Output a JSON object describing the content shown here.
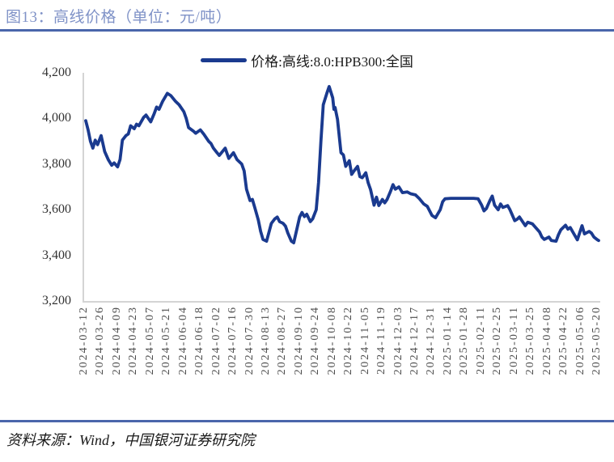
{
  "title": "图13：高线价格（单位：元/吨）",
  "legend": {
    "label": "价格:高线:8.0:HPB300:全国"
  },
  "source": "资料来源：Wind，中国银河证券研究院",
  "colors": {
    "line": "#1A3A8F",
    "rule": "#4A66AB",
    "title": "#7F92C7",
    "axis": "#D4D4D4"
  },
  "chart_data": {
    "type": "line",
    "title": "图13：高线价格（单位：元/吨）",
    "unit": "元/吨",
    "xlabel": "",
    "ylabel": "",
    "ylim": [
      3200,
      4200
    ],
    "grid": false,
    "legend_position": "top",
    "yticks": [
      4200,
      4000,
      3800,
      3600,
      3400,
      3200
    ],
    "ytick_labels": [
      "4,200",
      "4,000",
      "3,800",
      "3,600",
      "3,400",
      "3,200"
    ],
    "xtick_labels": [
      "2024-03-12",
      "2024-03-26",
      "2024-04-09",
      "2024-04-23",
      "2024-05-07",
      "2024-05-21",
      "2024-06-04",
      "2024-06-18",
      "2024-07-02",
      "2024-07-16",
      "2024-07-30",
      "2024-08-13",
      "2024-08-27",
      "2024-09-10",
      "2024-09-24",
      "2024-10-08",
      "2024-10-22",
      "2024-11-05",
      "2024-11-19",
      "2024-12-03",
      "2024-12-17",
      "2024-12-31",
      "2025-01-14",
      "2025-01-28",
      "2025-02-11",
      "2025-02-25",
      "2025-03-11",
      "2025-03-25",
      "2025-04-08",
      "2025-04-22",
      "2025-05-06",
      "2025-05-20"
    ],
    "series": [
      {
        "name": "价格:高线:8.0:HPB300:全国",
        "x": [
          "2024-03-12",
          "2024-03-14",
          "2024-03-16",
          "2024-03-18",
          "2024-03-20",
          "2024-03-22",
          "2024-03-25",
          "2024-03-28",
          "2024-03-31",
          "2024-04-03",
          "2024-04-05",
          "2024-04-08",
          "2024-04-10",
          "2024-04-12",
          "2024-04-15",
          "2024-04-17",
          "2024-04-19",
          "2024-04-22",
          "2024-04-24",
          "2024-04-26",
          "2024-04-30",
          "2024-05-02",
          "2024-05-06",
          "2024-05-09",
          "2024-05-11",
          "2024-05-13",
          "2024-05-16",
          "2024-05-20",
          "2024-05-23",
          "2024-05-27",
          "2024-05-30",
          "2024-06-03",
          "2024-06-05",
          "2024-06-07",
          "2024-06-11",
          "2024-06-13",
          "2024-06-17",
          "2024-06-20",
          "2024-06-24",
          "2024-06-26",
          "2024-06-28",
          "2024-07-01",
          "2024-07-03",
          "2024-07-08",
          "2024-07-11",
          "2024-07-15",
          "2024-07-18",
          "2024-07-22",
          "2024-07-24",
          "2024-07-26",
          "2024-07-29",
          "2024-07-31",
          "2024-08-02",
          "2024-08-05",
          "2024-08-07",
          "2024-08-09",
          "2024-08-12",
          "2024-08-14",
          "2024-08-16",
          "2024-08-19",
          "2024-08-21",
          "2024-08-23",
          "2024-08-26",
          "2024-08-28",
          "2024-08-30",
          "2024-09-02",
          "2024-09-04",
          "2024-09-06",
          "2024-09-09",
          "2024-09-11",
          "2024-09-13",
          "2024-09-15",
          "2024-09-18",
          "2024-09-20",
          "2024-09-23",
          "2024-09-25",
          "2024-09-27",
          "2024-09-29",
          "2024-10-02",
          "2024-10-04",
          "2024-10-07",
          "2024-10-08",
          "2024-10-09",
          "2024-10-11",
          "2024-10-14",
          "2024-10-16",
          "2024-10-18",
          "2024-10-21",
          "2024-10-23",
          "2024-10-25",
          "2024-10-28",
          "2024-10-30",
          "2024-11-01",
          "2024-11-04",
          "2024-11-06",
          "2024-11-08",
          "2024-11-11",
          "2024-11-13",
          "2024-11-15",
          "2024-11-18",
          "2024-11-20",
          "2024-11-22",
          "2024-11-25",
          "2024-11-27",
          "2024-11-29",
          "2024-12-02",
          "2024-12-05",
          "2024-12-09",
          "2024-12-12",
          "2024-12-16",
          "2024-12-19",
          "2024-12-23",
          "2024-12-26",
          "2024-12-30",
          "2025-01-02",
          "2025-01-06",
          "2025-01-08",
          "2025-01-10",
          "2025-01-15",
          "2025-01-20",
          "2025-01-24",
          "2025-01-29",
          "2025-02-03",
          "2025-02-07",
          "2025-02-10",
          "2025-02-12",
          "2025-02-14",
          "2025-02-17",
          "2025-02-19",
          "2025-02-21",
          "2025-02-24",
          "2025-02-26",
          "2025-02-28",
          "2025-03-04",
          "2025-03-06",
          "2025-03-10",
          "2025-03-12",
          "2025-03-14",
          "2025-03-17",
          "2025-03-19",
          "2025-03-21",
          "2025-03-25",
          "2025-03-28",
          "2025-03-31",
          "2025-04-02",
          "2025-04-04",
          "2025-04-08",
          "2025-04-10",
          "2025-04-14",
          "2025-04-16",
          "2025-04-18",
          "2025-04-22",
          "2025-04-24",
          "2025-04-26",
          "2025-04-29",
          "2025-05-02",
          "2025-05-06",
          "2025-05-08",
          "2025-05-12",
          "2025-05-14",
          "2025-05-16",
          "2025-05-19",
          "2025-05-20"
        ],
        "values": [
          3990,
          3950,
          3900,
          3870,
          3905,
          3885,
          3925,
          3855,
          3820,
          3795,
          3805,
          3788,
          3820,
          3905,
          3925,
          3932,
          3968,
          3955,
          3975,
          3968,
          4005,
          4015,
          3985,
          4022,
          4050,
          4040,
          4075,
          4110,
          4100,
          4075,
          4060,
          4030,
          4000,
          3960,
          3945,
          3935,
          3950,
          3930,
          3900,
          3890,
          3870,
          3850,
          3838,
          3870,
          3825,
          3850,
          3820,
          3800,
          3770,
          3690,
          3640,
          3645,
          3610,
          3555,
          3505,
          3470,
          3462,
          3500,
          3540,
          3560,
          3568,
          3548,
          3540,
          3528,
          3498,
          3462,
          3455,
          3500,
          3568,
          3588,
          3570,
          3580,
          3548,
          3560,
          3600,
          3720,
          3900,
          4060,
          4110,
          4140,
          4090,
          4040,
          4048,
          3996,
          3850,
          3840,
          3790,
          3815,
          3755,
          3770,
          3790,
          3745,
          3740,
          3762,
          3718,
          3688,
          3620,
          3655,
          3618,
          3645,
          3630,
          3645,
          3682,
          3710,
          3690,
          3700,
          3675,
          3678,
          3670,
          3665,
          3650,
          3625,
          3615,
          3575,
          3565,
          3600,
          3635,
          3648,
          3650,
          3650,
          3650,
          3650,
          3650,
          3648,
          3620,
          3595,
          3605,
          3640,
          3660,
          3620,
          3600,
          3625,
          3610,
          3618,
          3600,
          3552,
          3558,
          3568,
          3545,
          3530,
          3545,
          3538,
          3520,
          3502,
          3480,
          3470,
          3480,
          3465,
          3462,
          3490,
          3512,
          3532,
          3515,
          3522,
          3495,
          3468,
          3530,
          3494,
          3505,
          3497,
          3480,
          3468,
          3465
        ]
      }
    ]
  }
}
